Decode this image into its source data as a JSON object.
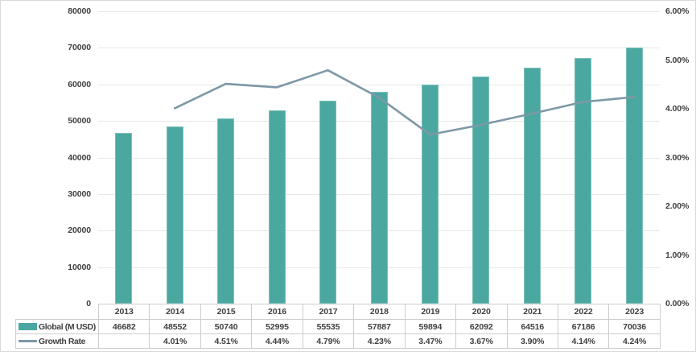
{
  "chart_data": {
    "type": "combo-bar-line",
    "title": "",
    "categories": [
      "2013",
      "2014",
      "2015",
      "2016",
      "2017",
      "2018",
      "2019",
      "2020",
      "2021",
      "2022",
      "2023"
    ],
    "series": [
      {
        "name": "Global (M USD)",
        "type": "bar",
        "axis": "left",
        "values": [
          46682,
          48552,
          50740,
          52995,
          55535,
          57887,
          59894,
          62092,
          64516,
          67186,
          70036
        ],
        "table_labels": [
          "46682",
          "48552",
          "50740",
          "52995",
          "55535",
          "57887",
          "59894",
          "62092",
          "64516",
          "67186",
          "70036"
        ]
      },
      {
        "name": "Growth Rate",
        "type": "line",
        "axis": "right",
        "values": [
          null,
          4.01,
          4.51,
          4.44,
          4.79,
          4.23,
          3.47,
          3.67,
          3.9,
          4.14,
          4.24
        ],
        "table_labels": [
          "",
          "4.01%",
          "4.51%",
          "4.44%",
          "4.79%",
          "4.23%",
          "3.47%",
          "3.67%",
          "3.90%",
          "4.14%",
          "4.24%"
        ]
      }
    ],
    "left_axis": {
      "min": 0,
      "max": 80000,
      "step": 10000,
      "tick_labels": [
        "0",
        "10000",
        "20000",
        "30000",
        "40000",
        "50000",
        "60000",
        "70000",
        "80000"
      ]
    },
    "right_axis": {
      "min": 0,
      "max": 6,
      "step": 1,
      "tick_labels": [
        "0.00%",
        "1.00%",
        "2.00%",
        "3.00%",
        "4.00%",
        "5.00%",
        "6.00%"
      ]
    },
    "gridlines": true,
    "legend_position": "data-table-left",
    "colors": {
      "bar": "#4aa8a0",
      "line": "#7d98a7",
      "grid": "#e8e8e8",
      "text": "#3f3f3f",
      "table_border": "#cdcdcd"
    }
  }
}
